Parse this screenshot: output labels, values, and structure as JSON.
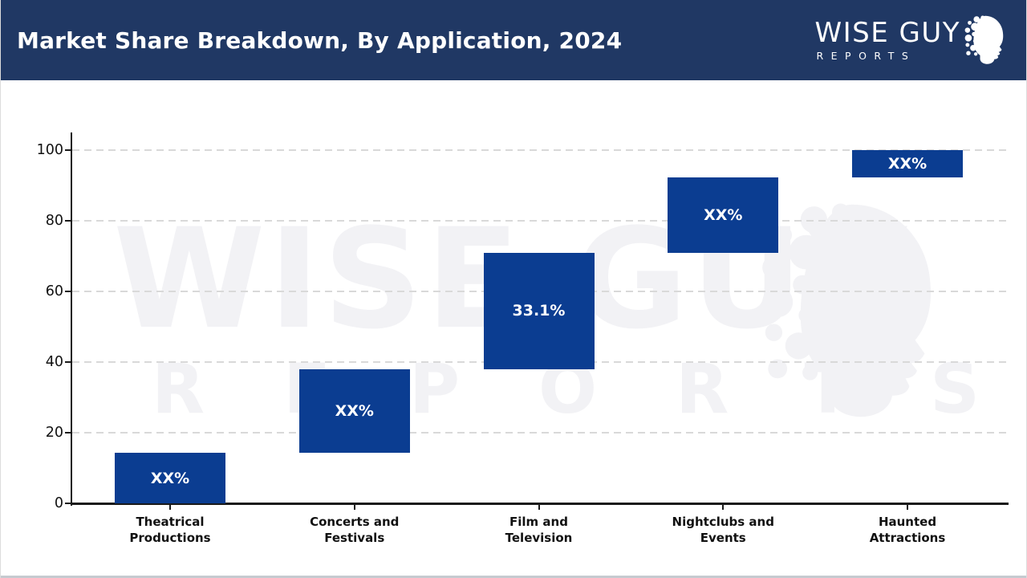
{
  "header": {
    "title": "Market Share Breakdown, By Application, 2024",
    "bg_color": "#203864",
    "logo": {
      "line1": "WISE GUY",
      "line2": "REPORTS"
    }
  },
  "watermark": {
    "line1": "WISE GUY",
    "line2": "REPORTS"
  },
  "chart_data": {
    "type": "bar",
    "variant": "floating-waterfall-segments",
    "title": "Market Share Breakdown, By Application, 2024",
    "xlabel": "",
    "ylabel": "",
    "categories": [
      "Theatrical Productions",
      "Concerts and Festivals",
      "Film and Television",
      "Nightclubs and Events",
      "Haunted Attractions"
    ],
    "category_label_lines": [
      [
        "Theatrical",
        "Productions"
      ],
      [
        "Concerts and",
        "Festivals"
      ],
      [
        "Film and",
        "Television"
      ],
      [
        "Nightclubs and",
        "Events"
      ],
      [
        "Haunted",
        "Attractions"
      ]
    ],
    "segments": [
      {
        "category": "Theatrical Productions",
        "start": 0,
        "end": 14.3,
        "value_label": "XX%"
      },
      {
        "category": "Concerts and Festivals",
        "start": 14.3,
        "end": 37.9,
        "value_label": "XX%"
      },
      {
        "category": "Film and Television",
        "start": 37.9,
        "end": 71.0,
        "value_label": "33.1%"
      },
      {
        "category": "Nightclubs and Events",
        "start": 71.0,
        "end": 92.3,
        "value_label": "XX%"
      },
      {
        "category": "Haunted Attractions",
        "start": 92.3,
        "end": 100.0,
        "value_label": "XX%"
      }
    ],
    "yticks": [
      0,
      20,
      40,
      60,
      80,
      100
    ],
    "ylim": [
      0,
      105
    ],
    "grid": "dashed-horizontal",
    "legend": null,
    "bar_color": "#0b3d91",
    "bar_label_color": "#ffffff"
  }
}
